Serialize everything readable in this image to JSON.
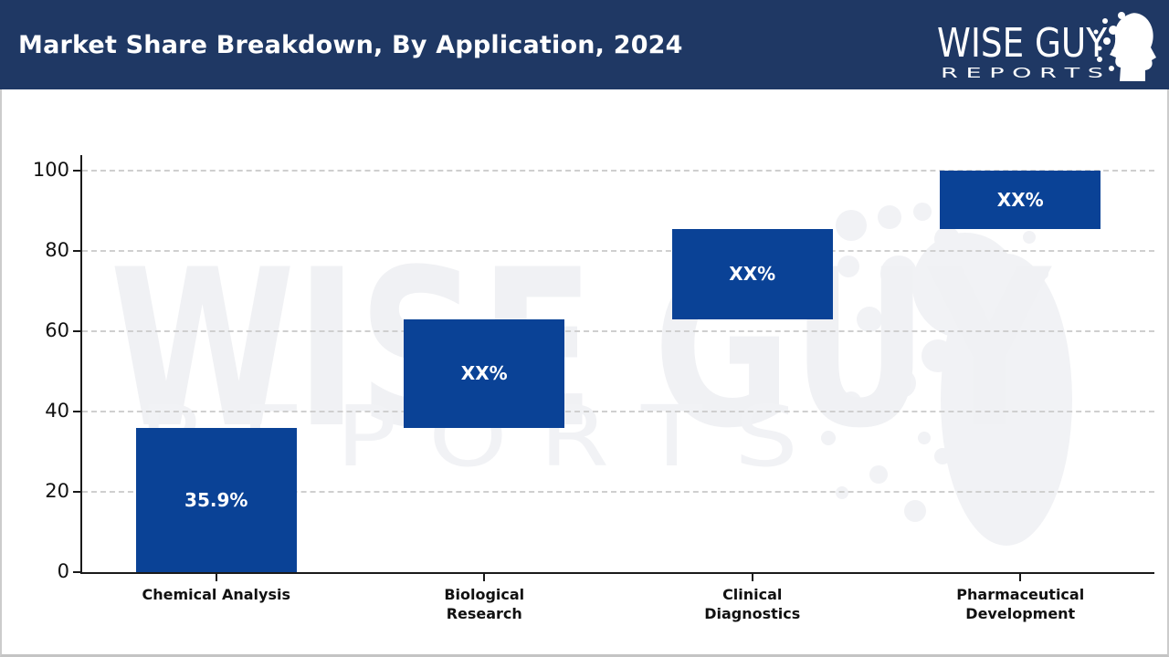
{
  "header": {
    "title": "Market Share Breakdown, By Application, 2024",
    "bg_color": "#1F3864",
    "logo": {
      "line1": "WISE GUY",
      "line2": "R E P O R T S"
    }
  },
  "watermark": {
    "line1": "WISE GUY",
    "line2": "R E P O R T S"
  },
  "chart_data": {
    "type": "bar",
    "subtype": "floating-segment-breakdown",
    "title": "Market Share Breakdown, By Application, 2024",
    "categories": [
      "Chemical Analysis",
      "Biological\nResearch",
      "Clinical\nDiagnostics",
      "Pharmaceutical\nDevelopment"
    ],
    "segments": [
      {
        "category": "Chemical Analysis",
        "start": 0,
        "end": 35.9,
        "value": 35.9,
        "label": "35.9%"
      },
      {
        "category": "Biological Research",
        "start": 35.9,
        "end": 63.0,
        "value": 27.1,
        "label": "XX%"
      },
      {
        "category": "Clinical Diagnostics",
        "start": 63.0,
        "end": 85.5,
        "value": 22.5,
        "label": "XX%"
      },
      {
        "category": "Pharmaceutical Development",
        "start": 85.5,
        "end": 100,
        "value": 14.5,
        "label": "XX%"
      }
    ],
    "xlabel": "",
    "ylabel": "",
    "ylim": [
      0,
      100
    ],
    "yticks": [
      0,
      20,
      40,
      60,
      80,
      100
    ],
    "grid": "horizontal dashed",
    "legend": "none",
    "bar_color": "#0A4296",
    "bar_label_color": "#ffffff",
    "axis_color": "#1a1a1a"
  }
}
